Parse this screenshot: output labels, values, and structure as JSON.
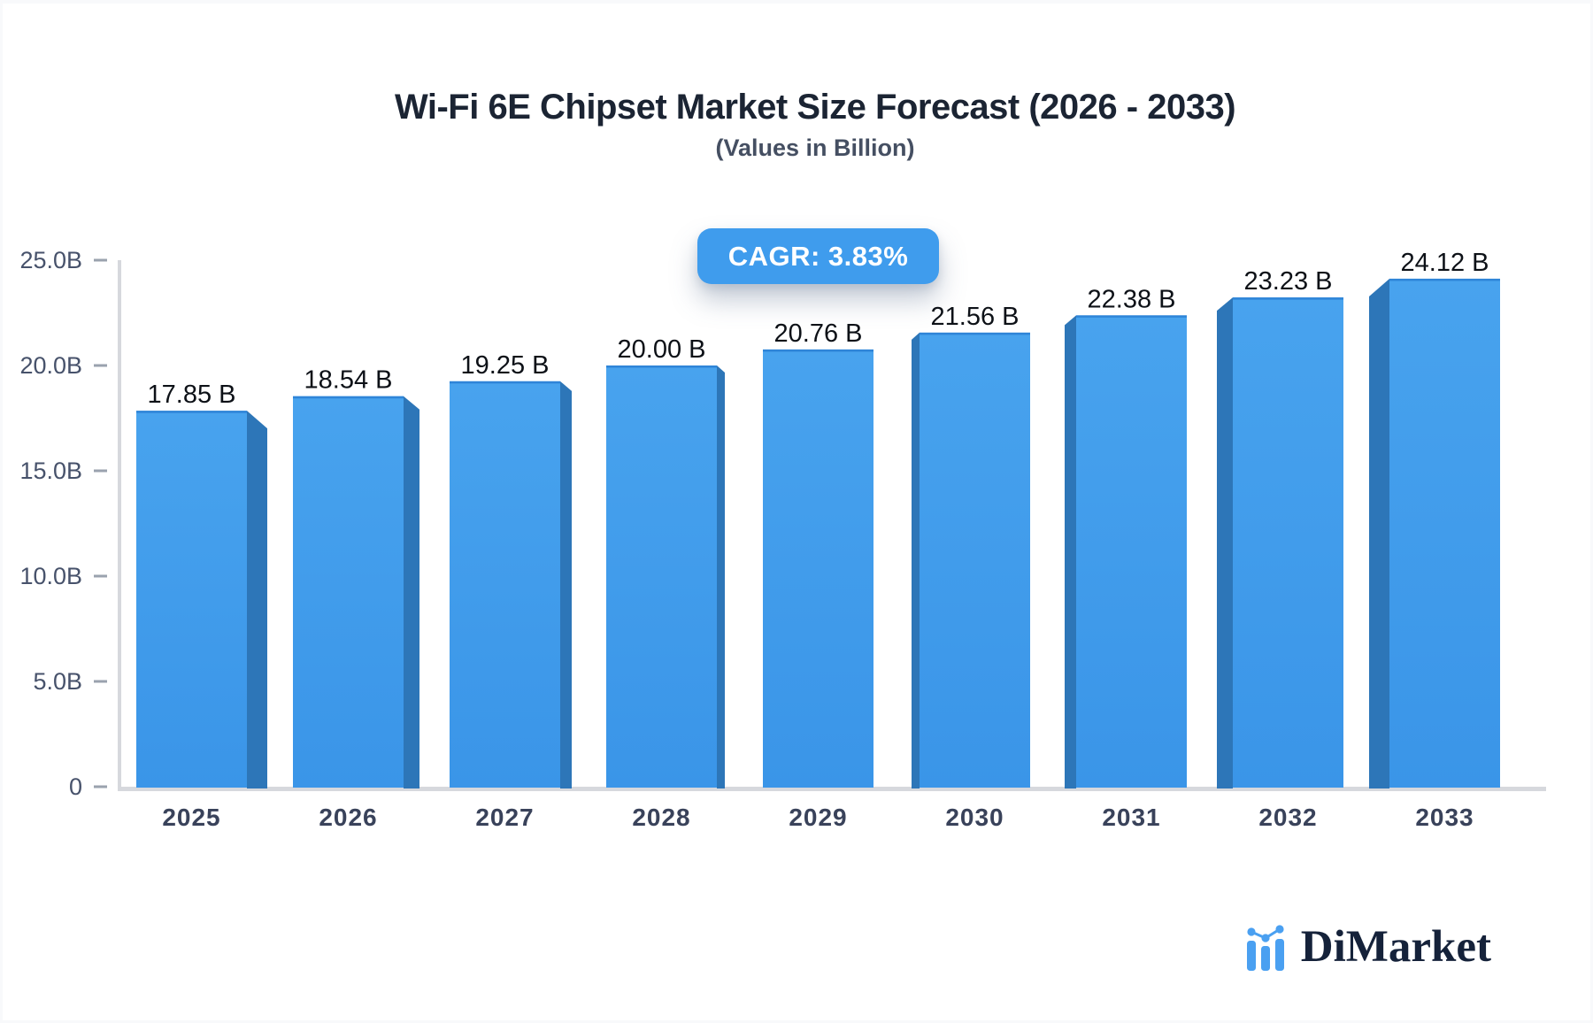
{
  "header": {
    "title": "Wi-Fi 6E Chipset Market Size Forecast (2026 - 2033)",
    "subtitle": "(Values in Billion)"
  },
  "badge": {
    "label": "CAGR: 3.83%"
  },
  "chart_data": {
    "type": "bar",
    "title": "Wi-Fi 6E Chipset Market Size Forecast (2026 - 2033)",
    "subtitle": "(Values in Billion)",
    "cagr_annotation": "CAGR: 3.83%",
    "categories": [
      "2025",
      "2026",
      "2027",
      "2028",
      "2029",
      "2030",
      "2031",
      "2032",
      "2033"
    ],
    "values": [
      17.85,
      18.54,
      19.25,
      20.0,
      20.76,
      21.56,
      22.38,
      23.23,
      24.12
    ],
    "value_labels": [
      "17.85 B",
      "18.54 B",
      "19.25 B",
      "20.00 B",
      "20.76 B",
      "21.56 B",
      "22.38 B",
      "23.23 B",
      "24.12 B"
    ],
    "xlabel": "",
    "ylabel": "",
    "ylim": [
      0,
      25
    ],
    "y_ticks": [
      {
        "value": 25,
        "label": "25.0B"
      },
      {
        "value": 20,
        "label": "20.0B"
      },
      {
        "value": 15,
        "label": "15.0B"
      },
      {
        "value": 10,
        "label": "10.0B"
      },
      {
        "value": 5,
        "label": "5.0B"
      },
      {
        "value": 0,
        "label": "0"
      }
    ],
    "grid": false,
    "legend": false,
    "style": "3d-extruded-bars-center-perspective"
  },
  "colors": {
    "bar_face_top": "#48a3ee",
    "bar_face_bottom": "#3a95e8",
    "bar_face_edge": "#2f85d8",
    "bar_side": "#2d76b8",
    "axis_line": "#d6d8dd",
    "tick_dash": "#9aa2ae",
    "y_label": "#47526b",
    "x_label": "#39425a",
    "value_label": "#0d1117",
    "badge_bg": "#3f9ced",
    "badge_text": "#ffffff",
    "logo_blue": "#4aa0f1",
    "logo_text": "#15223a"
  },
  "logo": {
    "name": "DiMarket",
    "icon": "mini-bar-chart-icon"
  }
}
